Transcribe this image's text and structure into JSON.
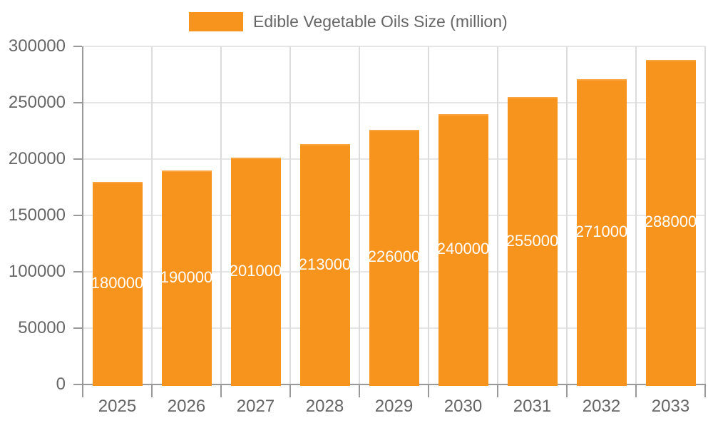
{
  "legend": {
    "label": "Edible Vegetable Oils Size (million)"
  },
  "colors": {
    "bar": "#f7941e",
    "bar_border": "#f9a43f",
    "bar_label": "#ffffff",
    "axis_label": "#666666",
    "axis_line": "#999999",
    "grid_horizontal": "#e6e6e6",
    "grid_vertical": "#dcdcdc",
    "background": "#ffffff"
  },
  "chart_data": {
    "type": "bar",
    "title": "Edible Vegetable Oils Size (million)",
    "categories": [
      "2025",
      "2026",
      "2027",
      "2028",
      "2029",
      "2030",
      "2031",
      "2032",
      "2033"
    ],
    "values": [
      180000,
      190000,
      201000,
      213000,
      226000,
      240000,
      255000,
      271000,
      288000
    ],
    "series": [
      {
        "name": "Edible Vegetable Oils Size (million)",
        "values": [
          180000,
          190000,
          201000,
          213000,
          226000,
          240000,
          255000,
          271000,
          288000
        ]
      }
    ],
    "xlabel": "",
    "ylabel": "",
    "ylim": [
      0,
      300000
    ],
    "ytick_interval": 50000,
    "yticks": [
      0,
      50000,
      100000,
      150000,
      200000,
      250000,
      300000
    ],
    "grid": true,
    "legend_position": "top-center",
    "bar_value_labels": "inside-center-white"
  }
}
